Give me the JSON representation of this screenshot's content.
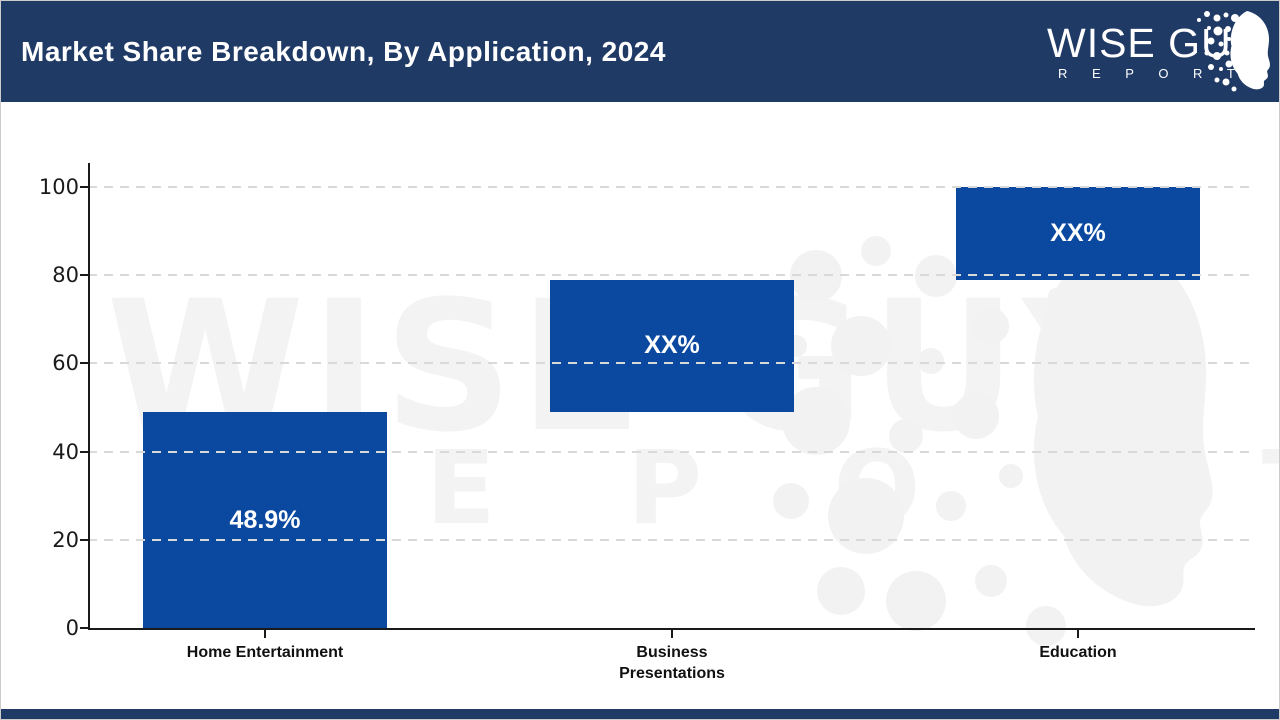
{
  "header": {
    "title": "Market Share Breakdown, By Application, 2024",
    "logo": {
      "brand_line1": "WISE GUY",
      "brand_line2": "R E P O R T S",
      "icon": "dotted-face-profile-icon"
    }
  },
  "watermark": {
    "line1": "WISE GUY",
    "line2": "R E P O R T S"
  },
  "chart_data": {
    "type": "bar",
    "subtype": "waterfall",
    "title": "Market Share Breakdown, By Application, 2024",
    "categories": [
      {
        "line1": "Home Entertainment",
        "line2": ""
      },
      {
        "line1": "Business",
        "line2": "Presentations"
      },
      {
        "line1": "Education",
        "line2": ""
      }
    ],
    "bars": [
      {
        "category": "Home Entertainment",
        "start": 0,
        "end": 48.9,
        "label": "48.9%"
      },
      {
        "category": "Business Presentations",
        "start": 48.9,
        "end": 79,
        "label": "XX%"
      },
      {
        "category": "Education",
        "start": 79,
        "end": 100,
        "label": "XX%"
      }
    ],
    "ylim": [
      0,
      100
    ],
    "yticks": [
      0,
      20,
      40,
      60,
      80,
      100
    ],
    "xlabel": "",
    "ylabel": "",
    "legend": "none",
    "grid": "horizontal-dashed"
  },
  "colors": {
    "header_bg": "#203a66",
    "footer_bg": "#203a66",
    "bar": "#0b49a1",
    "grid": "#d9d9d9",
    "axis": "#1a1a1a",
    "value_label": "#ffffff",
    "watermark": "#f3f3f3"
  }
}
